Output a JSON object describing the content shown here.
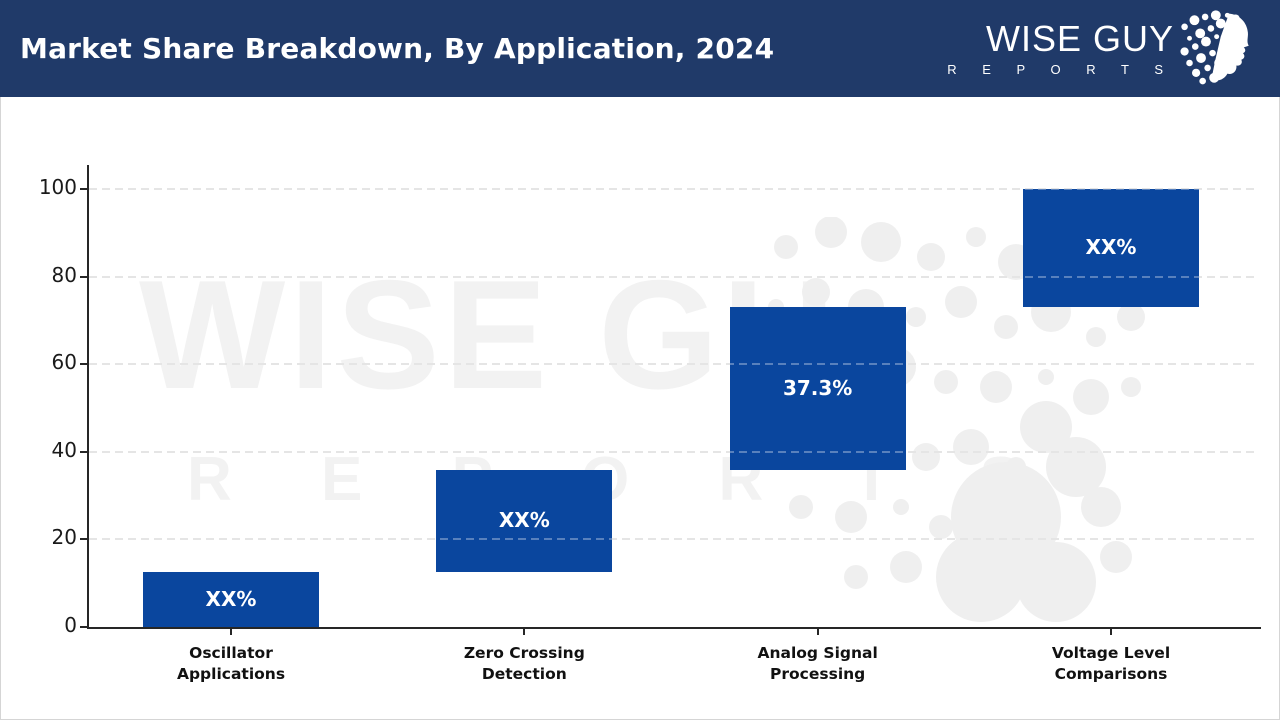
{
  "header": {
    "title": "Market Share Breakdown, By Application, 2024",
    "background_color": "#203a69",
    "brand": {
      "line1": "WISE GUY",
      "line2": "R E P O R T S"
    }
  },
  "watermark": {
    "line1": "WISE GU",
    "line2": "R E P O R T S"
  },
  "chart_data": {
    "type": "bar",
    "subtype": "waterfall",
    "title": "Market Share Breakdown, By Application, 2024",
    "xlabel": "",
    "ylabel": "",
    "ylim": [
      0,
      100
    ],
    "yticks": [
      0,
      20,
      40,
      60,
      80,
      100
    ],
    "grid": "horizontal-dashed",
    "gridline_color": "#d9d9d9",
    "axis_color": "#262626",
    "bar_color": "#0a469e",
    "value_label_color": "#ffffff",
    "legend": "none",
    "categories": [
      "Oscillator Applications",
      "Zero Crossing Detection",
      "Analog Signal Processing",
      "Voltage Level Comparisons"
    ],
    "segments": [
      {
        "category_lines": [
          "Oscillator",
          "Applications"
        ],
        "start": 0,
        "end": 12.5,
        "value": 12.5,
        "label": "XX%"
      },
      {
        "category_lines": [
          "Zero Crossing",
          "Detection"
        ],
        "start": 12.5,
        "end": 35.8,
        "value": 23.3,
        "label": "XX%"
      },
      {
        "category_lines": [
          "Analog Signal",
          "Processing"
        ],
        "start": 35.8,
        "end": 73.1,
        "value": 37.3,
        "label": "37.3%"
      },
      {
        "category_lines": [
          "Voltage Level",
          "Comparisons"
        ],
        "start": 73.1,
        "end": 100,
        "value": 26.9,
        "label": "XX%"
      }
    ]
  }
}
